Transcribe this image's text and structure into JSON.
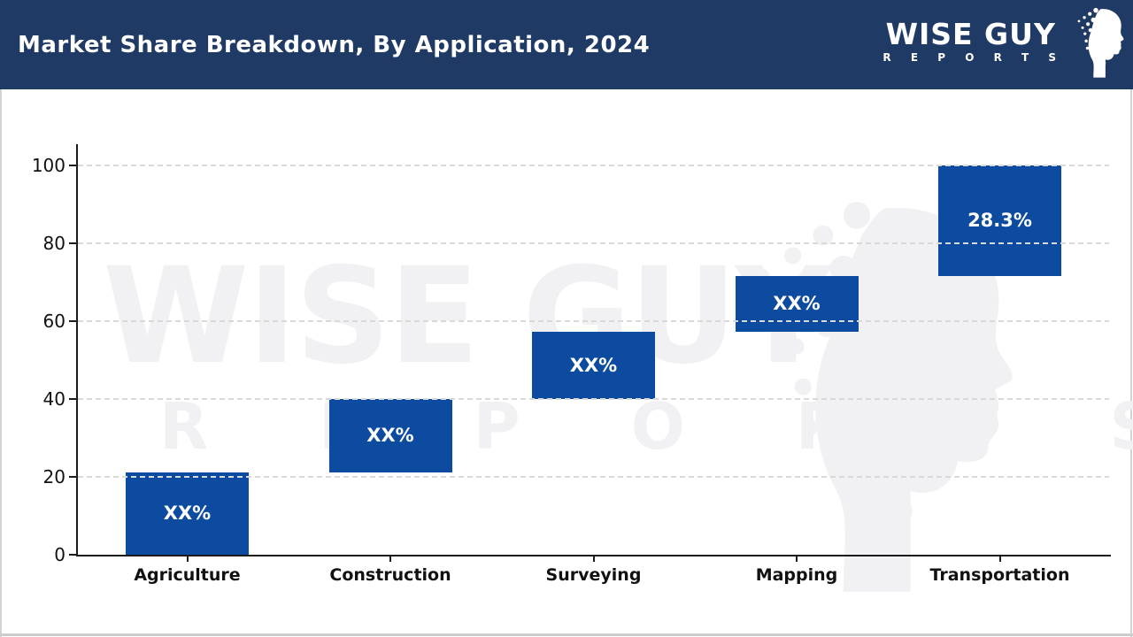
{
  "header": {
    "title": "Market Share Breakdown, By Application, 2024",
    "logo": {
      "wordmark": "WISE GUY",
      "subtext": "R E P O R T S"
    }
  },
  "watermark": {
    "wordmark": "WISE GUY",
    "subtext": "R E P O R T S"
  },
  "colors": {
    "header_bg": "#203a66",
    "bar": "#0c4ba0",
    "grid": "#d9d9d9",
    "axis": "#1c1c1c",
    "bar_label": "#ffffff",
    "watermark": "#f1f1f4"
  },
  "chart_data": {
    "type": "bar",
    "variant": "waterfall",
    "title": "Market Share Breakdown, By Application, 2024",
    "xlabel": "",
    "ylabel": "",
    "ylim": [
      0,
      100
    ],
    "yticks": [
      0,
      20,
      40,
      60,
      80,
      100
    ],
    "grid": "horizontal-dashed",
    "legend": false,
    "categories": [
      "Agriculture",
      "Construction",
      "Surveying",
      "Mapping",
      "Transportation"
    ],
    "segments": [
      {
        "category": "Agriculture",
        "start": 0,
        "end": 21.2,
        "value": 21.2,
        "label": "XX%"
      },
      {
        "category": "Construction",
        "start": 21.2,
        "end": 40.1,
        "value": 18.9,
        "label": "XX%"
      },
      {
        "category": "Surveying",
        "start": 40.1,
        "end": 57.2,
        "value": 17.1,
        "label": "XX%"
      },
      {
        "category": "Mapping",
        "start": 57.2,
        "end": 71.7,
        "value": 14.5,
        "label": "XX%"
      },
      {
        "category": "Transportation",
        "start": 71.7,
        "end": 100,
        "value": 28.3,
        "label": "28.3%"
      }
    ]
  }
}
